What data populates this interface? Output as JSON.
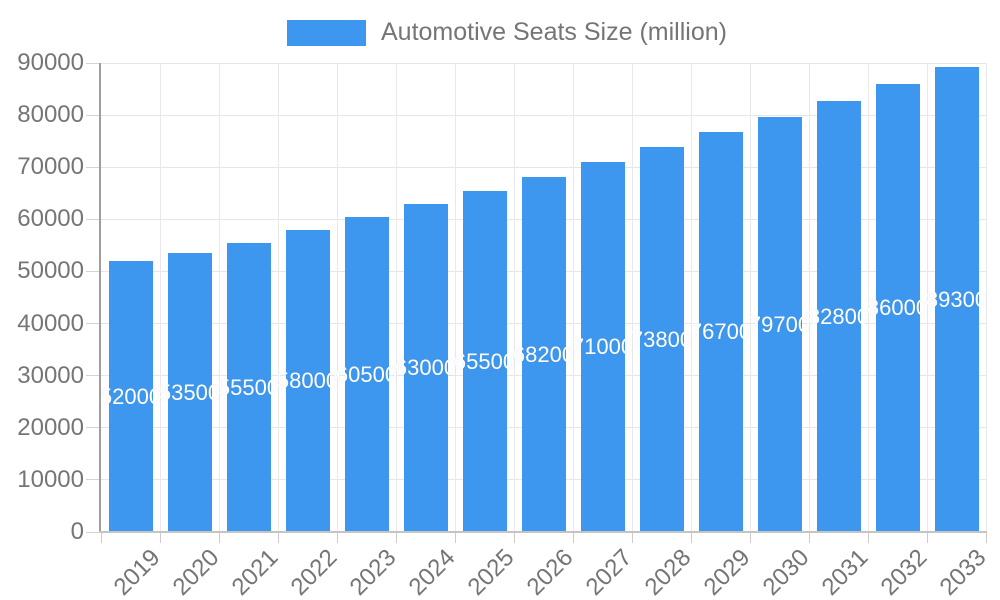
{
  "legend": {
    "label": "Automotive Seats Size (million)",
    "swatch_color": "#3d97ee"
  },
  "chart_data": {
    "type": "bar",
    "title": "Automotive Seats Size (million)",
    "series_name": "Automotive Seats Size (million)",
    "categories": [
      "2019",
      "2020",
      "2021",
      "2022",
      "2023",
      "2024",
      "2025",
      "2026",
      "2027",
      "2028",
      "2029",
      "2030",
      "2031",
      "2032",
      "2033"
    ],
    "values": [
      52000,
      53500,
      55500,
      58000,
      60500,
      63000,
      65500,
      68200,
      71000,
      73800,
      76700,
      79700,
      82800,
      86000,
      89300
    ],
    "xlabel": "",
    "ylabel": "",
    "ylim": [
      0,
      90000
    ],
    "y_tick_step": 10000,
    "y_tick_labels": [
      "0",
      "10000",
      "20000",
      "30000",
      "40000",
      "50000",
      "60000",
      "70000",
      "80000",
      "90000"
    ],
    "grid": true,
    "legend_position": "top",
    "x_label_rotation_deg": -45,
    "bar_color": "#3d97ee",
    "value_label_color": "#ffffff",
    "axis_text_color": "#757575",
    "gridline_color": "#e6e6e6"
  }
}
